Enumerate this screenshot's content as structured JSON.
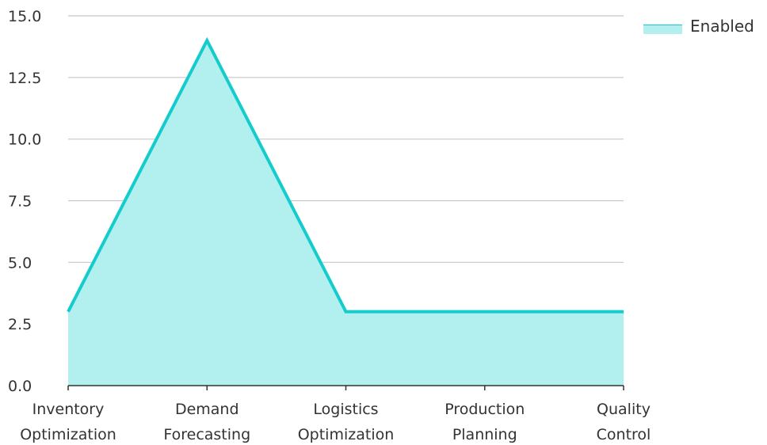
{
  "chart_data": {
    "type": "area",
    "categories": [
      [
        "Inventory",
        "Optimization"
      ],
      [
        "Demand",
        "Forecasting"
      ],
      [
        "Logistics",
        "Optimization"
      ],
      [
        "Production",
        "Planning"
      ],
      [
        "Quality",
        "Control"
      ]
    ],
    "series": [
      {
        "name": "Enabled",
        "values": [
          3,
          14,
          3,
          3,
          3
        ]
      }
    ],
    "yticks": [
      "0.0",
      "2.5",
      "5.0",
      "7.5",
      "10.0",
      "12.5",
      "15.0"
    ],
    "ylim": [
      0,
      15
    ],
    "grid": true,
    "legend": "top-right",
    "colors": {
      "line": "#14cccc",
      "fill": "#b2efef",
      "grid": "#c8c8c8",
      "axis": "#333333"
    }
  }
}
